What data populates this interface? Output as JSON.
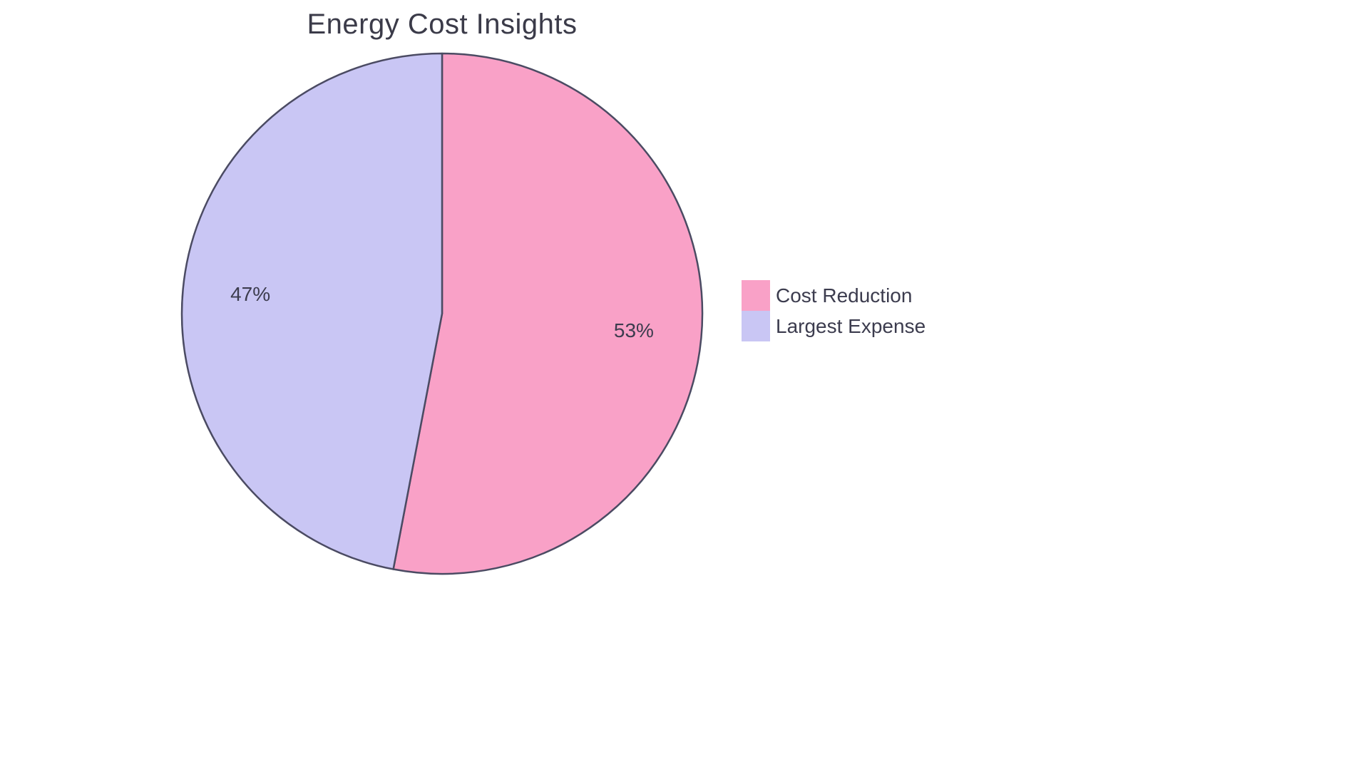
{
  "title": "Energy Cost Insights",
  "chart_data": {
    "type": "pie",
    "title": "Energy Cost Insights",
    "slices": [
      {
        "label": "Cost Reduction",
        "value": 53,
        "display": "53%",
        "color": "#F9A1C7"
      },
      {
        "label": "Largest Expense",
        "value": 47,
        "display": "47%",
        "color": "#C9C6F4"
      }
    ],
    "start_angle": "top",
    "direction": "clockwise",
    "legend_position": "right",
    "stroke_color": "#4B4B63",
    "label_color": "#3C3C4E",
    "background": "#FFFFFF"
  },
  "legend": {
    "items": [
      {
        "label": "Cost Reduction",
        "color": "#F9A1C7"
      },
      {
        "label": "Largest Expense",
        "color": "#C9C6F4"
      }
    ]
  }
}
